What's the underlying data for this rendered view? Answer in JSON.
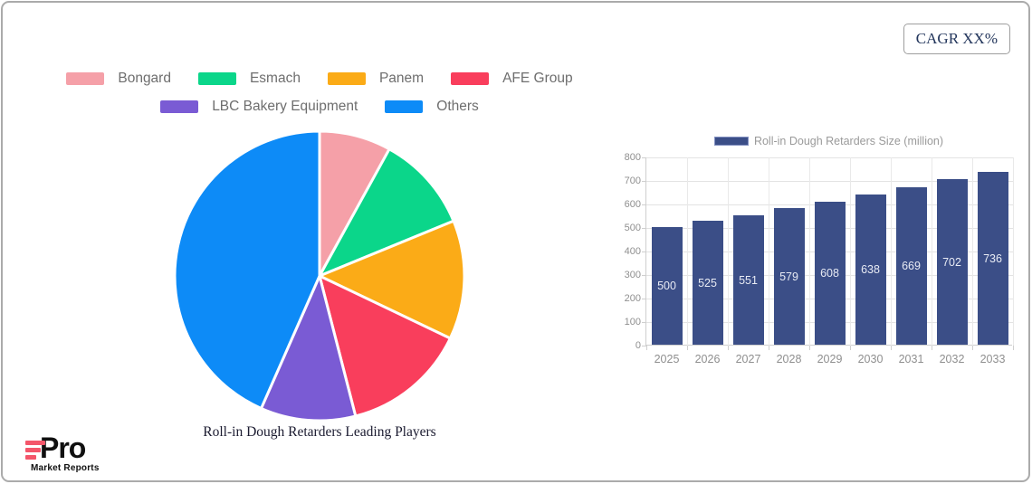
{
  "header": {
    "cagr_label": "CAGR XX%"
  },
  "logo": {
    "title": "Pro",
    "subtitle": "Market Reports",
    "accent_color": "#f4566a"
  },
  "chart_data": [
    {
      "type": "pie",
      "title": "Roll-in Dough Retarders Leading Players",
      "labels": [
        "Bongard",
        "Esmach",
        "Panem",
        "AFE Group",
        "LBC Bakery Equipment",
        "Others"
      ],
      "values": [
        8,
        10.8,
        13.3,
        13.9,
        10.6,
        43.4
      ],
      "colors": [
        "#f5a0a8",
        "#0bd68a",
        "#fbab17",
        "#f93e5c",
        "#7a5bd4",
        "#0d8bf7"
      ],
      "legend_rows": [
        [
          0,
          1,
          2,
          3
        ],
        [
          4,
          5
        ]
      ],
      "legend_position": "top",
      "start_angle_deg": 0,
      "direction": "clockwise",
      "slice_border_color": "#ffffff"
    },
    {
      "type": "bar",
      "legend_label": "Roll-in Dough Retarders Size (million)",
      "categories": [
        "2025",
        "2026",
        "2027",
        "2028",
        "2029",
        "2030",
        "2031",
        "2032",
        "2033"
      ],
      "values": [
        500,
        525,
        551,
        579,
        608,
        638,
        669,
        702,
        736
      ],
      "bar_color": "#3b4e87",
      "value_label_color": "#e8ebf4",
      "ylim": [
        0,
        800
      ],
      "ytick_step": 100,
      "grid": true,
      "legend_position": "top"
    }
  ]
}
